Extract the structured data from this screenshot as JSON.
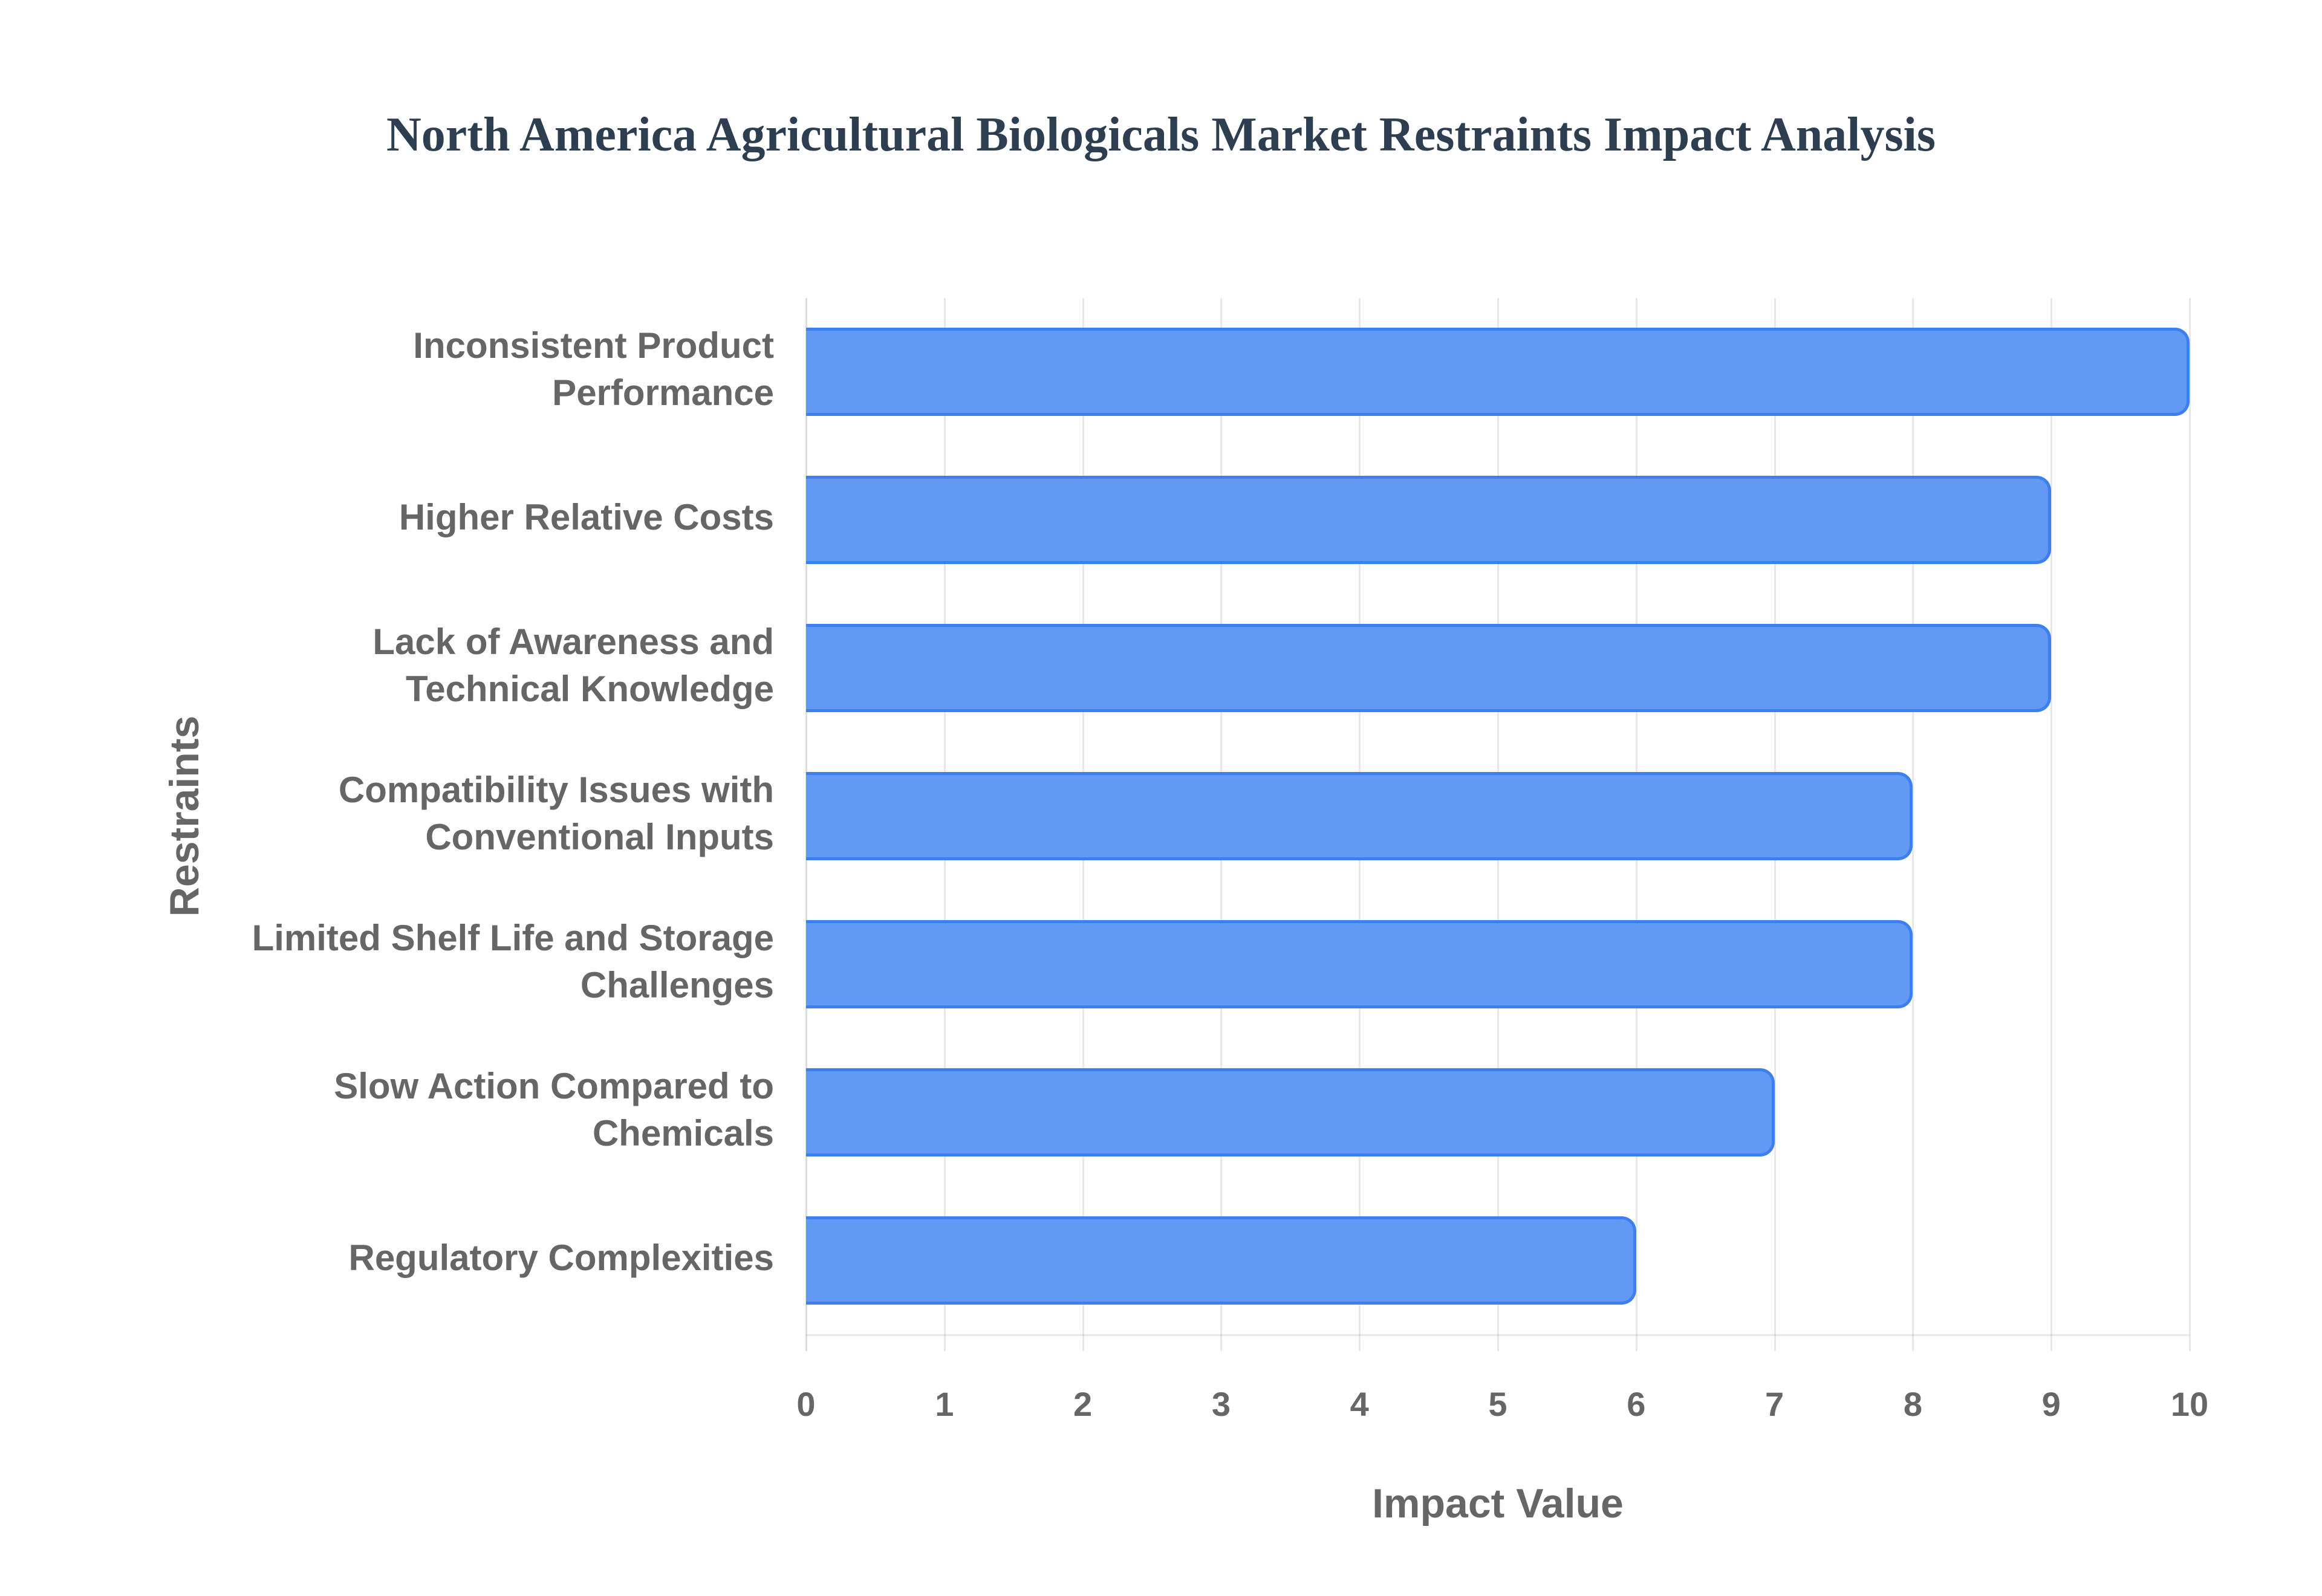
{
  "chart": {
    "title": "North America Agricultural Biologicals Market Restraints Impact Analysis",
    "x_axis_title": "Impact Value",
    "y_axis_title": "Restraints",
    "bar_fill": "#6199F4",
    "bar_border": "#3B7FF0",
    "title_color": "#2C3E50",
    "label_color": "#666666",
    "x_ticks": [
      "0",
      "1",
      "2",
      "3",
      "4",
      "5",
      "6",
      "7",
      "8",
      "9",
      "10"
    ],
    "categories": [
      {
        "label_lines": [
          "Inconsistent Product",
          "Performance"
        ],
        "value": 10
      },
      {
        "label_lines": [
          "Higher Relative Costs"
        ],
        "value": 9
      },
      {
        "label_lines": [
          "Lack of Awareness and",
          "Technical Knowledge"
        ],
        "value": 9
      },
      {
        "label_lines": [
          "Compatibility Issues with",
          "Conventional Inputs"
        ],
        "value": 8
      },
      {
        "label_lines": [
          "Limited Shelf Life and Storage",
          "Challenges"
        ],
        "value": 8
      },
      {
        "label_lines": [
          "Slow Action Compared to",
          "Chemicals"
        ],
        "value": 7
      },
      {
        "label_lines": [
          "Regulatory Complexities"
        ],
        "value": 6
      }
    ]
  },
  "chart_data": {
    "type": "bar",
    "orientation": "horizontal",
    "title": "North America Agricultural Biologicals Market Restraints Impact Analysis",
    "xlabel": "Impact Value",
    "ylabel": "Restraints",
    "categories": [
      "Inconsistent Product Performance",
      "Higher Relative Costs",
      "Lack of Awareness and Technical Knowledge",
      "Compatibility Issues with Conventional Inputs",
      "Limited Shelf Life and Storage Challenges",
      "Slow Action Compared to Chemicals",
      "Regulatory Complexities"
    ],
    "values": [
      10,
      9,
      9,
      8,
      8,
      7,
      6
    ],
    "xlim": [
      0,
      10
    ],
    "x_ticks": [
      0,
      1,
      2,
      3,
      4,
      5,
      6,
      7,
      8,
      9,
      10
    ],
    "grid": true,
    "legend": null
  }
}
